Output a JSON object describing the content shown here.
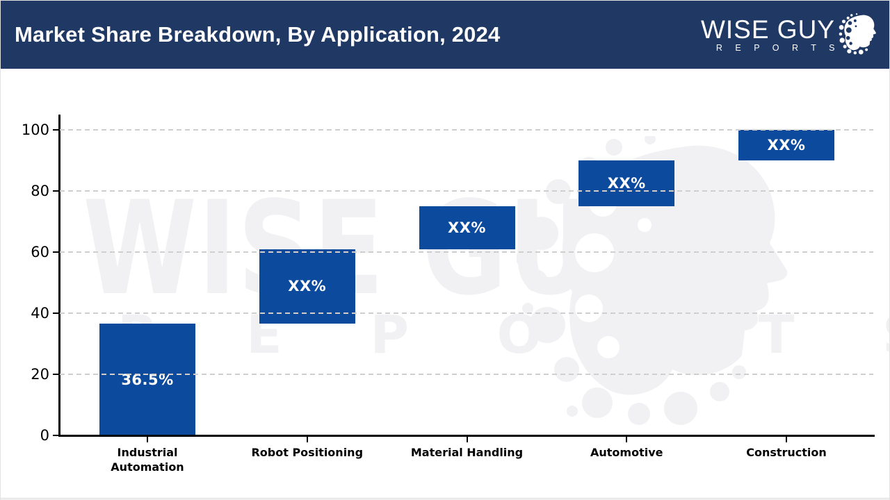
{
  "header": {
    "title": "Market Share Breakdown, By Application, 2024",
    "bg_color": "#1f3864",
    "logo": {
      "line1": "WISE GUY",
      "line2": "R E P O R T S",
      "head_icon": "dotted-head-profile"
    }
  },
  "watermark": {
    "line1": "WISE GUY",
    "line2": "R E P O R T S",
    "head_icon": "dotted-head-profile",
    "color": "#f1f1f3"
  },
  "chart_data": {
    "type": "bar",
    "variant": "waterfall",
    "title": "Market Share Breakdown, By Application, 2024",
    "xlabel": "",
    "ylabel": "",
    "ylim": [
      0,
      105
    ],
    "yticks": [
      0,
      20,
      40,
      60,
      80,
      100
    ],
    "grid": "horizontal-dashed",
    "legend": "none",
    "bar_color": "#0c4a9d",
    "label_color": "#ffffff",
    "categories": [
      "Industrial Automation",
      "Robot Positioning",
      "Material Handling",
      "Automotive",
      "Construction"
    ],
    "bars": [
      {
        "category": "Industrial\nAutomation",
        "start": 0,
        "end": 36.5,
        "label": "36.5%"
      },
      {
        "category": "Robot Positioning",
        "start": 36.5,
        "end": 61,
        "label": "XX%"
      },
      {
        "category": "Material Handling",
        "start": 61,
        "end": 75,
        "label": "XX%"
      },
      {
        "category": "Automotive",
        "start": 75,
        "end": 90,
        "label": "XX%"
      },
      {
        "category": "Construction",
        "start": 90,
        "end": 100,
        "label": "XX%"
      }
    ]
  }
}
